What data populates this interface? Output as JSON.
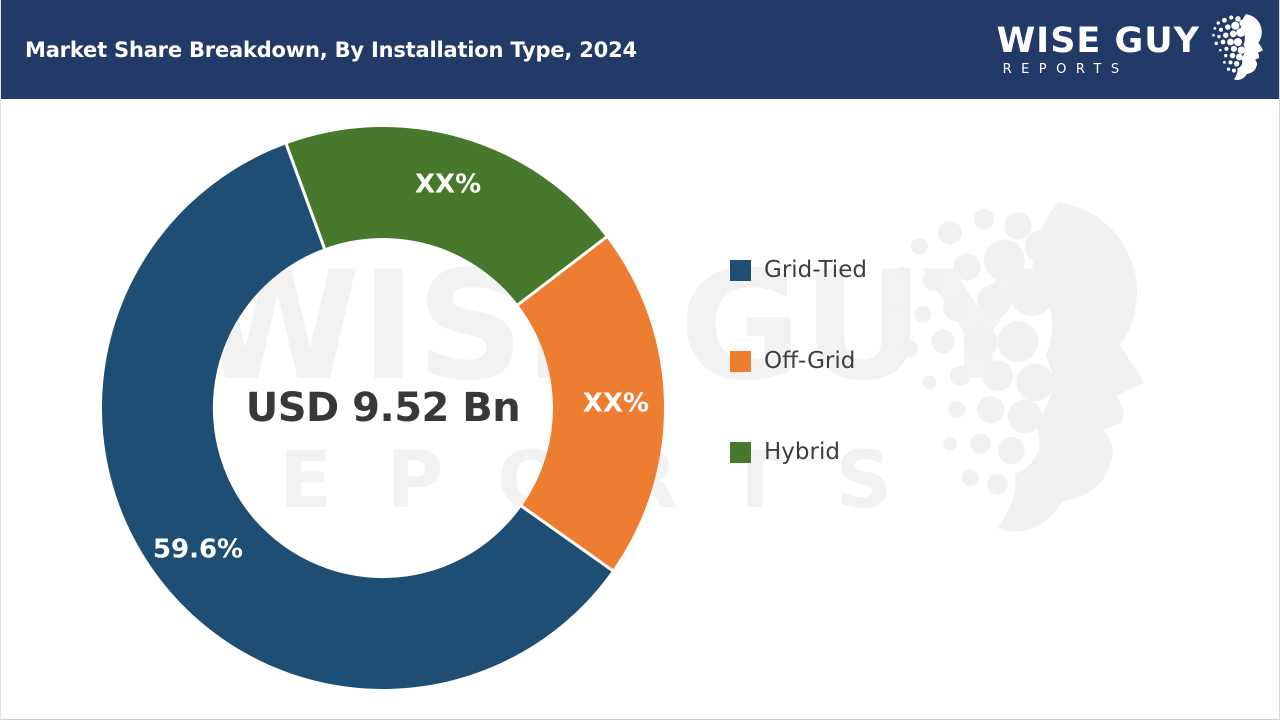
{
  "header": {
    "title": "Market Share Breakdown, By Installation Type, 2024",
    "background_color": "#223a68",
    "logo": {
      "line1": "WISE GUY",
      "line2": "REPORTS"
    }
  },
  "watermark": {
    "line1": "WISE GUY",
    "line2": "REPORTS"
  },
  "legend": {
    "items": [
      {
        "label": "Grid-Tied",
        "color": "#1f4e74"
      },
      {
        "label": "Off-Grid",
        "color": "#ed7d31"
      },
      {
        "label": "Hybrid",
        "color": "#47782b"
      }
    ]
  },
  "chart_data": {
    "type": "pie",
    "subtype": "donut",
    "title": "Market Share Breakdown, By Installation Type, 2024",
    "center_total": "USD 9.52 Bn",
    "segments": [
      {
        "label": "Grid-Tied",
        "value": 59.6,
        "display": "59.6%",
        "color": "#1f4e74"
      },
      {
        "label": "Off-Grid",
        "value": 20.2,
        "display": "XX%",
        "color": "#ed7d31"
      },
      {
        "label": "Hybrid",
        "value": 20.2,
        "display": "XX%",
        "color": "#47782b"
      }
    ],
    "draw_order": [
      0,
      2,
      1
    ],
    "start_angle_deg_cw_from_top": 125.3,
    "outer_radius_px": 281,
    "inner_radius_ratio": 0.605,
    "separator_color": "#ffffff",
    "legend_position": "right",
    "note": "Off-Grid and Hybrid values are masked as XX% in the source; numeric values estimated from arc angles"
  }
}
